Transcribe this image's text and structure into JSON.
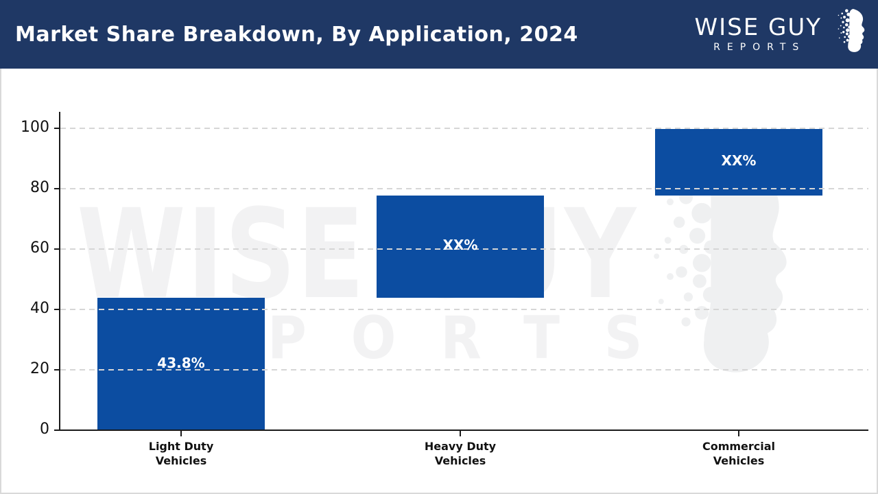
{
  "header": {
    "title": "Market Share Breakdown, By Application, 2024",
    "logo": {
      "wordmark": "WISE GUY",
      "subtext": "REPORTS"
    }
  },
  "watermark": {
    "line1": "WISE GUY",
    "line2": "REPORTS"
  },
  "colors": {
    "header_bg": "#1f3865",
    "bar_blue": "#0c4da1",
    "axis": "#1a1a1a",
    "gridline": "#d6d6d6",
    "bar_label_text": "#ffffff",
    "tick_text": "#111111",
    "watermark_text": "#f2f2f3"
  },
  "chart_data": {
    "type": "bar",
    "subtype": "waterfall",
    "title": "Market Share Breakdown, By Application, 2024",
    "categories": [
      [
        "Light Duty",
        "Vehicles"
      ],
      [
        "Heavy Duty",
        "Vehicles"
      ],
      [
        "Commercial",
        "Vehicles"
      ]
    ],
    "bars": [
      {
        "category": "Light Duty Vehicles",
        "label": "43.8%",
        "start": 0,
        "end": 43.8
      },
      {
        "category": "Heavy Duty Vehicles",
        "label": "XX%",
        "start": 43.8,
        "end": 77.8
      },
      {
        "category": "Commercial Vehicles",
        "label": "XX%",
        "start": 77.8,
        "end": 99.8
      }
    ],
    "ylim": [
      0,
      100
    ],
    "yticks": [
      0,
      20,
      40,
      60,
      80,
      100
    ],
    "grid": "horizontal-dashed",
    "legend": "none",
    "xlabel": "",
    "ylabel": ""
  }
}
